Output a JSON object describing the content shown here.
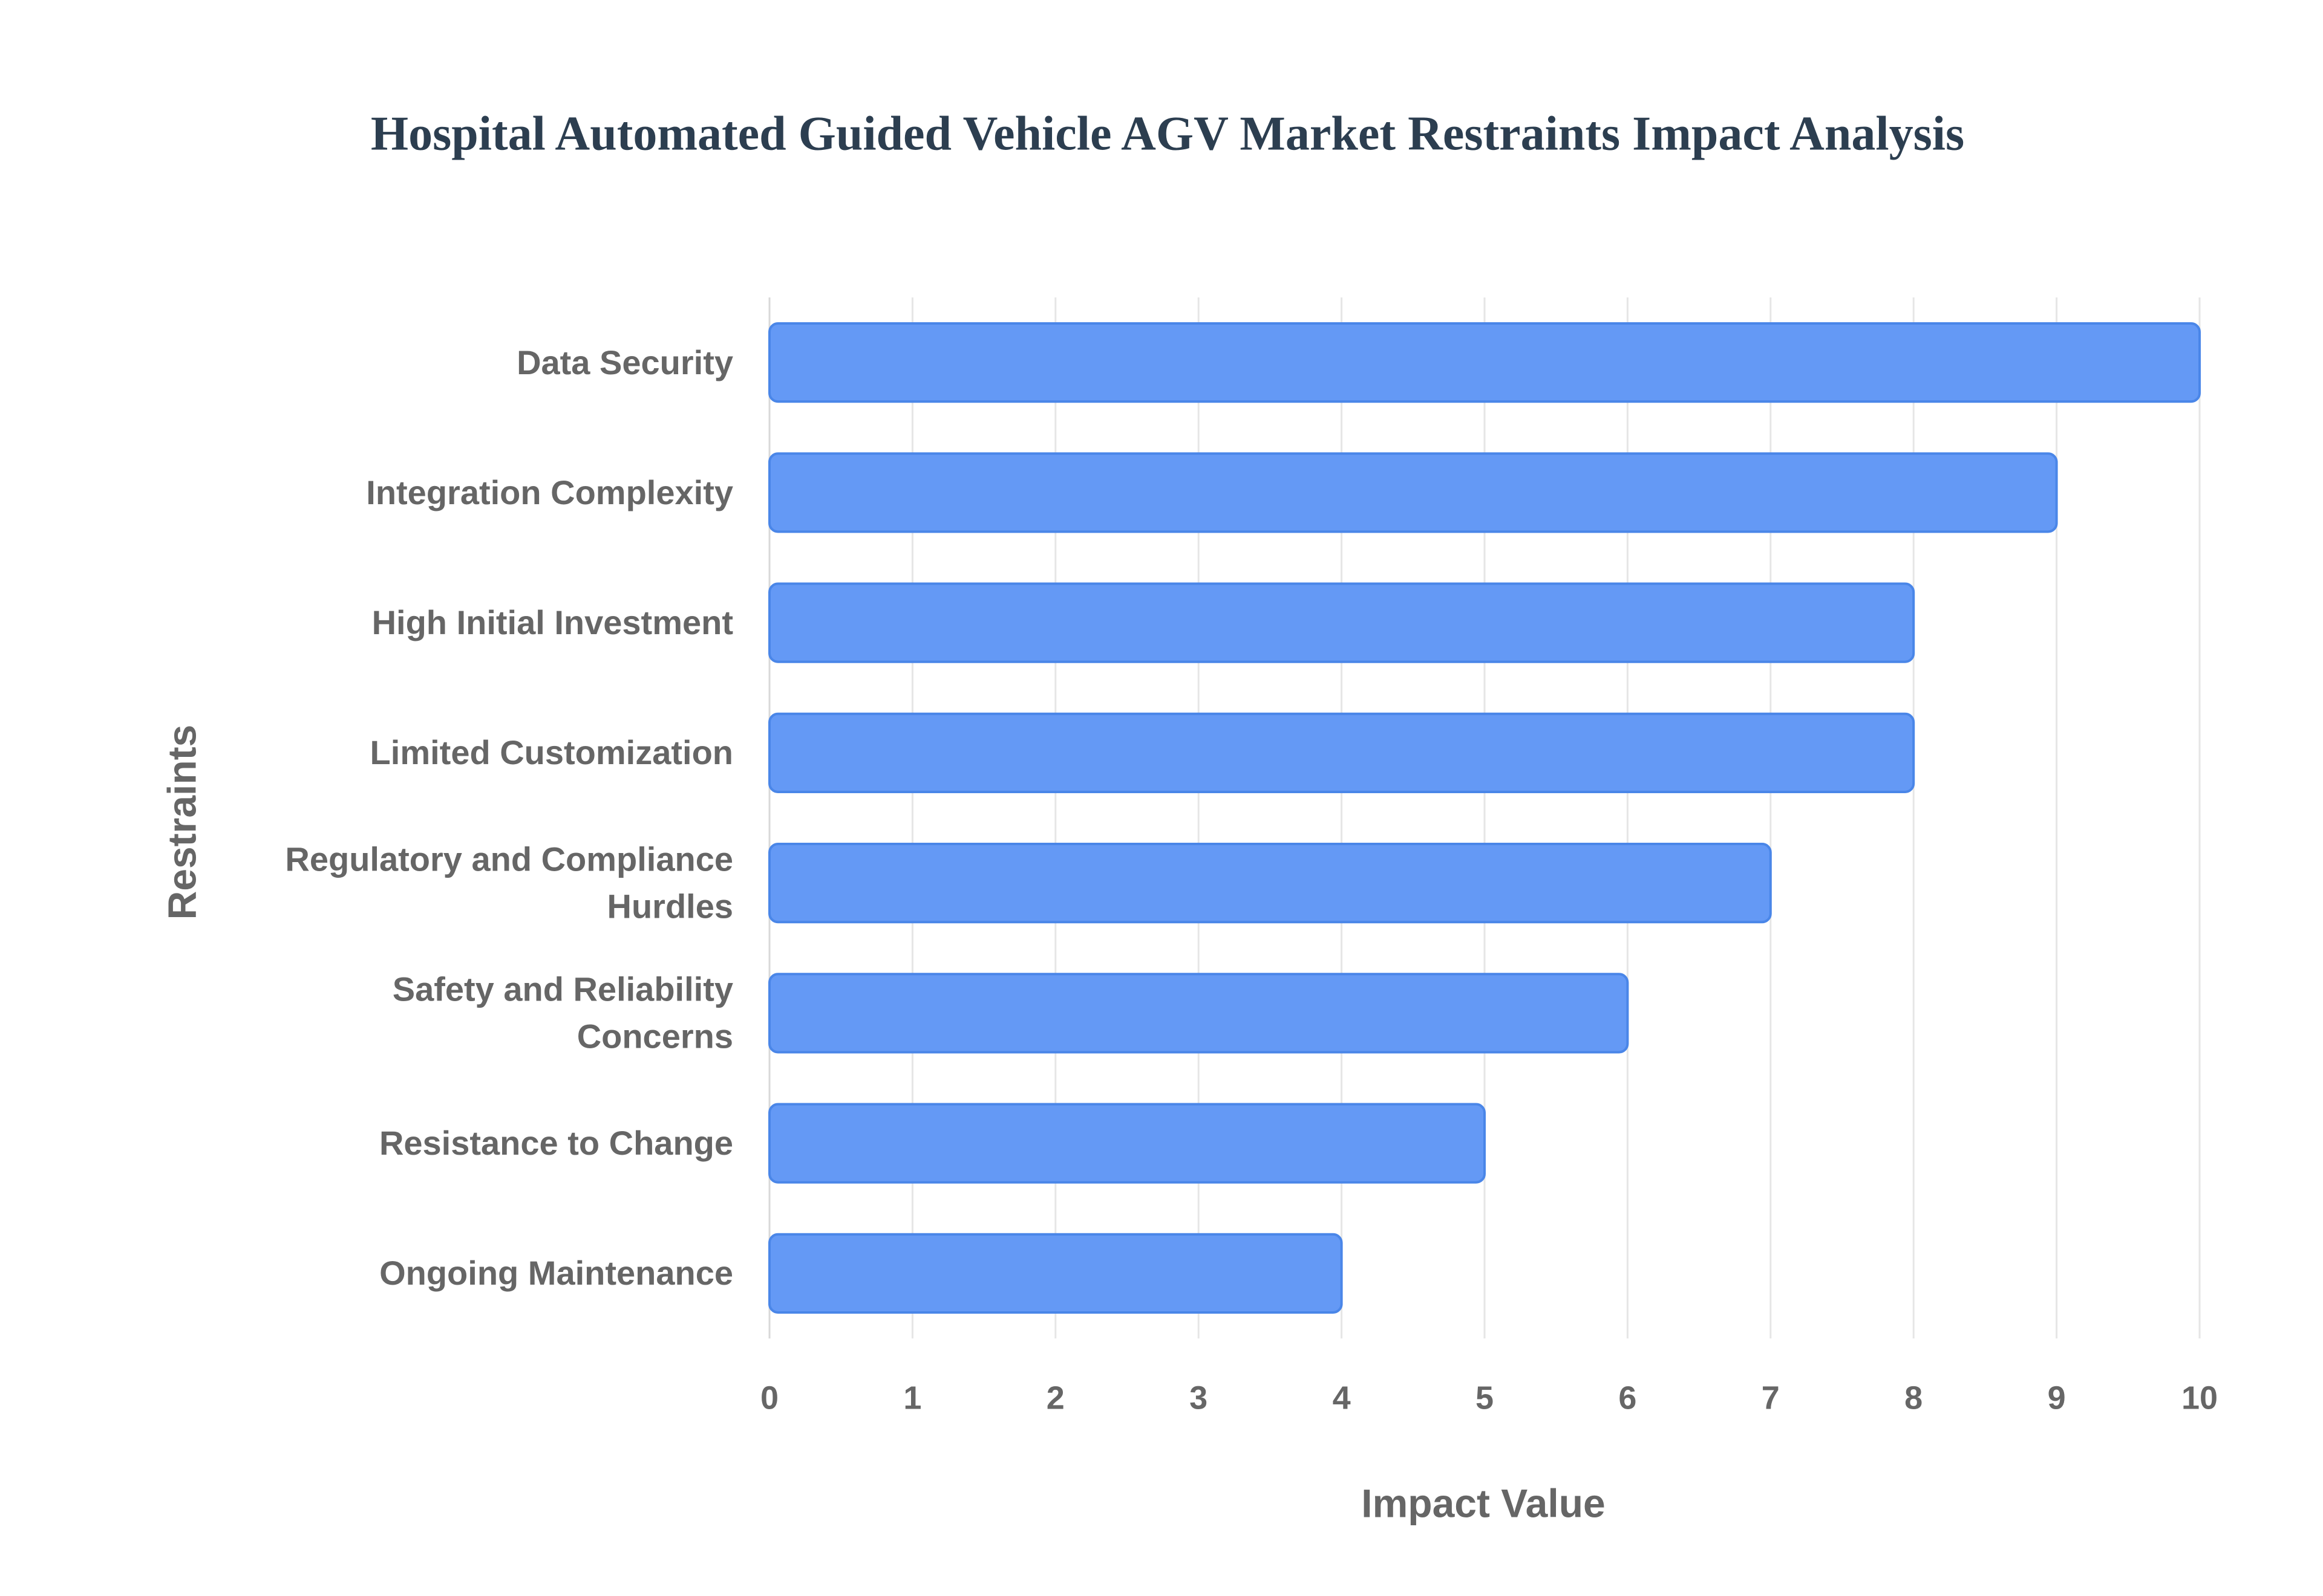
{
  "chart_data": {
    "type": "bar",
    "orientation": "horizontal",
    "title": "Hospital Automated Guided Vehicle AGV Market Restraints Impact Analysis",
    "x_label": "Impact Value",
    "y_label": "Restraints",
    "categories": [
      "Data Security",
      "Integration Complexity",
      "High Initial Investment",
      "Limited Customization",
      "Regulatory and Compliance Hurdles",
      "Safety and Reliability Concerns",
      "Resistance to Change",
      "Ongoing Maintenance"
    ],
    "values": [
      10,
      9,
      8,
      8,
      7,
      6,
      5,
      4
    ],
    "color": "#6499f5",
    "xlim": [
      0,
      10
    ],
    "xticks": [
      0,
      1,
      2,
      3,
      4,
      5,
      6,
      7,
      8,
      9,
      10
    ],
    "grid": true
  }
}
